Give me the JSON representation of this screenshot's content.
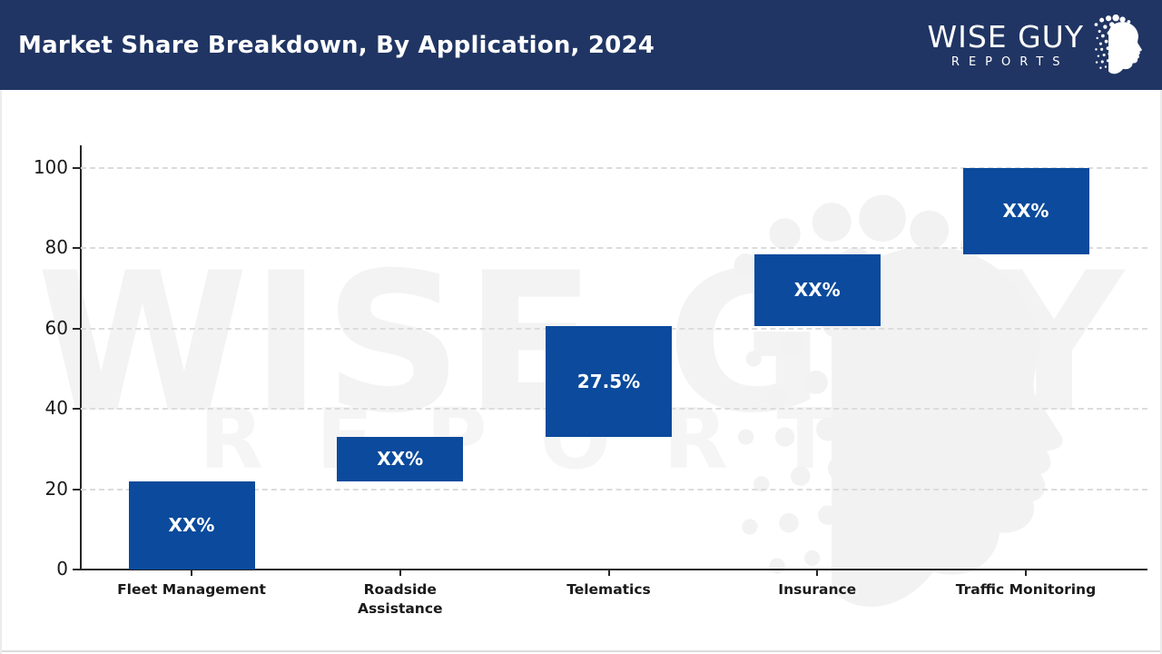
{
  "header": {
    "title": "Market Share Breakdown, By Application, 2024",
    "bg_color": "#203563",
    "logo": {
      "line1": "WISE GUY",
      "line2": "REPORTS"
    }
  },
  "watermark": {
    "line1": "WISE GUY",
    "line2": "REPORTS"
  },
  "chart_data": {
    "type": "bar",
    "subtype": "waterfall-stacked-breakdown",
    "title": "Market Share Breakdown, By Application, 2024",
    "xlabel": "",
    "ylabel": "",
    "categories": [
      "Fleet Management",
      "Roadside\nAssistance",
      "Telematics",
      "Insurance",
      "Traffic Monitoring"
    ],
    "segments": [
      {
        "category": "Fleet Management",
        "start": 0,
        "end": 22,
        "value_label": "XX%"
      },
      {
        "category": "Roadside Assistance",
        "start": 22,
        "end": 33,
        "value_label": "XX%"
      },
      {
        "category": "Telematics",
        "start": 33,
        "end": 60.5,
        "value_label": "27.5%"
      },
      {
        "category": "Insurance",
        "start": 60.5,
        "end": 78.5,
        "value_label": "XX%"
      },
      {
        "category": "Traffic Monitoring",
        "start": 78.5,
        "end": 100,
        "value_label": "XX%"
      }
    ],
    "yticks": [
      0,
      20,
      40,
      60,
      80,
      100
    ],
    "ylim": [
      0,
      105.5
    ],
    "grid": "horizontal-dashed",
    "legend": "none",
    "bar_color": "#0b4a9c",
    "grid_color": "#dcdcdc",
    "axis_color": "#262626",
    "label_color": "#ffffff"
  }
}
